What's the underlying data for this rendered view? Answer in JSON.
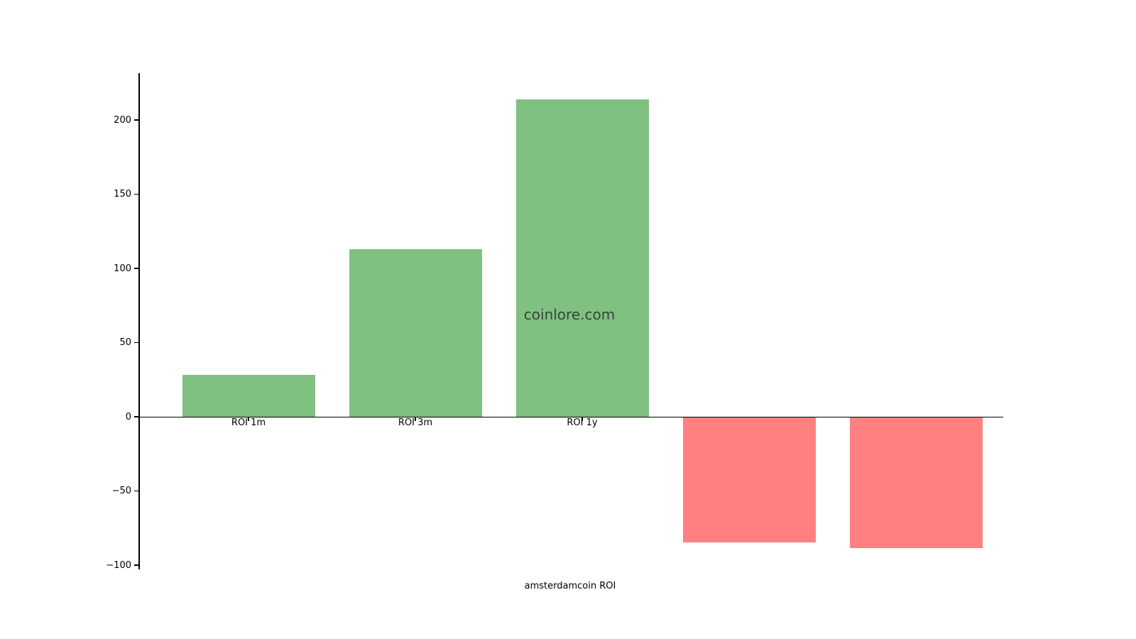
{
  "page": {
    "background": "#ffffff"
  },
  "watermark": {
    "text": "coinlore.com",
    "color": "#2d2d2d"
  },
  "chart_data": {
    "type": "bar",
    "title": "",
    "xlabel": "amsterdamcoin ROI",
    "ylabel": "",
    "categories": [
      "ROI 1m",
      "ROI 3m",
      "ROI 1y",
      "",
      ""
    ],
    "values": [
      28,
      113,
      214,
      -84,
      -88
    ],
    "bar_colors": [
      "#80c080",
      "#80c080",
      "#80c080",
      "#ff8080",
      "#ff8080"
    ],
    "positive_color": "#80c080",
    "negative_color": "#ff8080",
    "y_ticks": [
      200,
      150,
      100,
      50,
      0,
      -50,
      -100
    ],
    "y_tick_labels": [
      "200",
      "150",
      "100",
      "50",
      "0",
      "−50",
      "−100"
    ],
    "ylim": [
      -103,
      232
    ],
    "axis_color": "#000000",
    "grid": false,
    "legend": null,
    "watermark": "coinlore.com"
  }
}
